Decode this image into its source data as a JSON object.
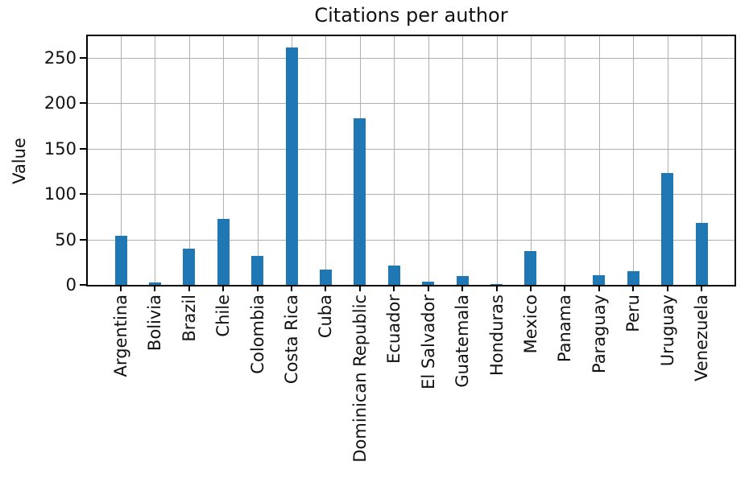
{
  "chart_data": {
    "type": "bar",
    "title": "Citations per author",
    "xlabel": "",
    "ylabel": "Value",
    "categories": [
      "Argentina",
      "Bolivia",
      "Brazil",
      "Chile",
      "Colombia",
      "Costa Rica",
      "Cuba",
      "Dominican Republic",
      "Ecuador",
      "El Salvador",
      "Guatemala",
      "Honduras",
      "Mexico",
      "Panama",
      "Paraguay",
      "Peru",
      "Uruguay",
      "Venezuela"
    ],
    "values": [
      54,
      3,
      40,
      73,
      32,
      262,
      17,
      184,
      21,
      4,
      10,
      1,
      37,
      0,
      11,
      15,
      123,
      68
    ],
    "yticks": [
      0,
      50,
      100,
      150,
      200,
      250
    ],
    "ylim": [
      0,
      274
    ],
    "grid": true,
    "legend": false,
    "bar_color": "#1f77b4",
    "grid_color": "#b0b0b0",
    "spine_color": "#000000",
    "text_color": "#111111"
  }
}
